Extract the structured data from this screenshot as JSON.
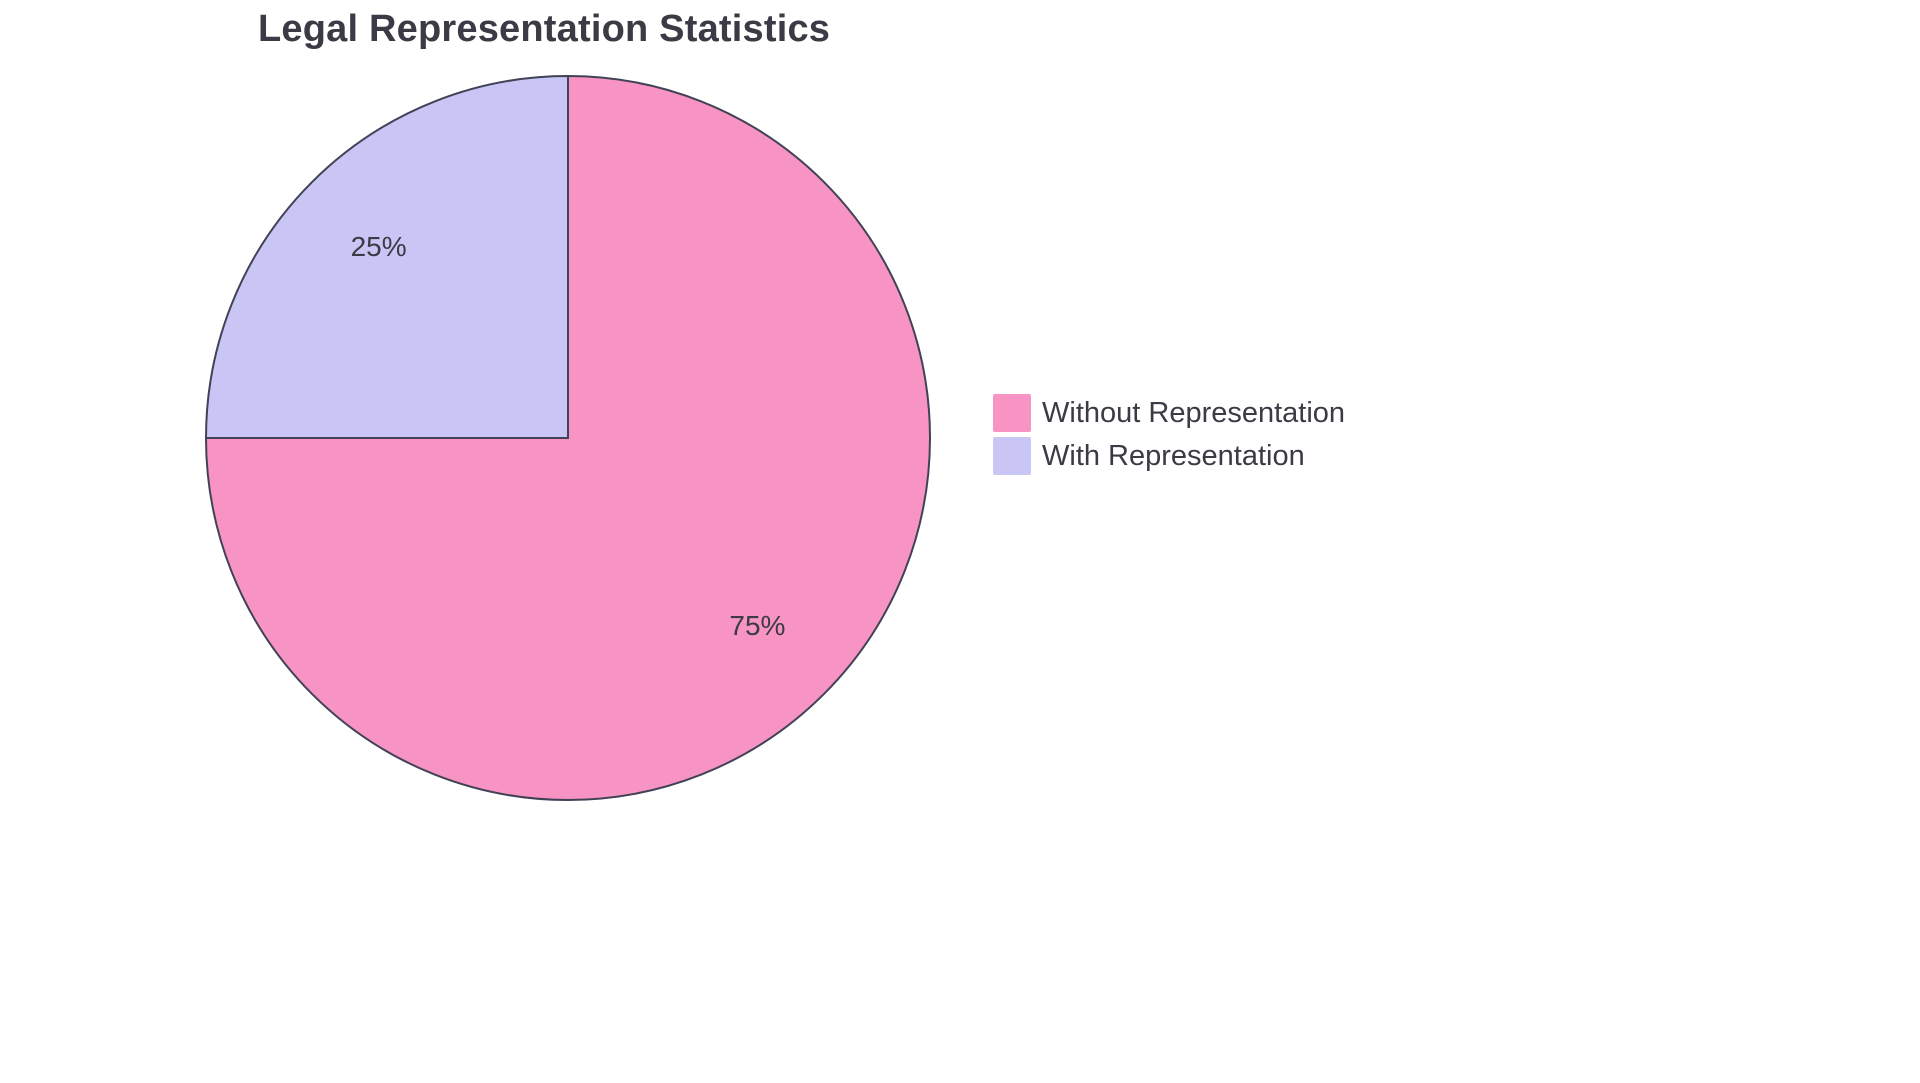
{
  "page": {
    "background_color": "#FFFFFF"
  },
  "chart_data": {
    "type": "pie",
    "title": "Legal Representation Statistics",
    "slices": [
      {
        "label": "Without Representation",
        "value": 75,
        "value_label": "75%",
        "color": "#F894C3"
      },
      {
        "label": "With Representation",
        "value": 25,
        "value_label": "25%",
        "color": "#C9C5F4"
      }
    ],
    "total": 100,
    "start_angle_deg": 0,
    "direction": "clockwise",
    "stroke_color": "#424257",
    "stroke_width": 2,
    "label_radius_fraction": 0.74,
    "text_color": "#3B3B45",
    "legend_position": "right",
    "legend_entries": [
      "Without Representation",
      "With Representation"
    ]
  }
}
